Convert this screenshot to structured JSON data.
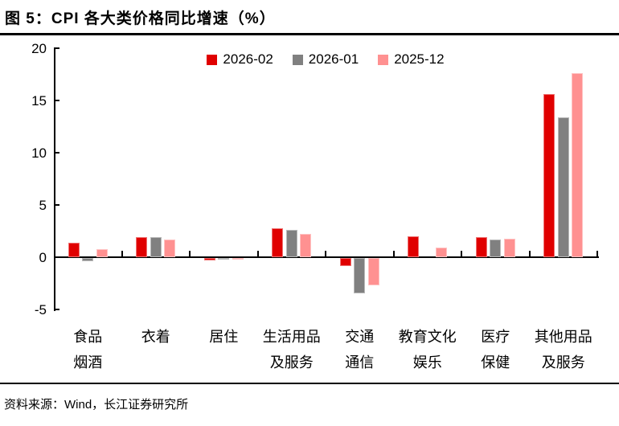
{
  "page": {
    "title": "图 5：CPI 各大类价格同比增速（%）",
    "source": "资料来源：Wind，长江证券研究所"
  },
  "chart_data": {
    "type": "bar",
    "title": "图 5：CPI 各大类价格同比增速（%）",
    "categories": [
      "食品烟酒",
      "衣着",
      "居住",
      "生活用品及服务",
      "交通通信",
      "教育文化娱乐",
      "医疗保健",
      "其他用品及服务"
    ],
    "category_label_lines": [
      [
        "食品",
        "烟酒"
      ],
      [
        "衣着"
      ],
      [
        "居住"
      ],
      [
        "生活用品",
        "及服务"
      ],
      [
        "交通",
        "通信"
      ],
      [
        "教育文化",
        "娱乐"
      ],
      [
        "医疗",
        "保健"
      ],
      [
        "其他用品",
        "及服务"
      ]
    ],
    "series": [
      {
        "name": "2026-02",
        "color": "#e00000",
        "values": [
          1.4,
          1.9,
          -0.2,
          2.8,
          -0.8,
          2.0,
          1.9,
          15.6
        ]
      },
      {
        "name": "2026-01",
        "color": "#808080",
        "values": [
          -0.3,
          1.9,
          -0.1,
          2.6,
          -3.4,
          0.0,
          1.7,
          13.4
        ]
      },
      {
        "name": "2025-12",
        "color": "#ff9191",
        "values": [
          0.8,
          1.7,
          -0.1,
          2.2,
          -2.6,
          0.9,
          1.8,
          17.6
        ]
      }
    ],
    "ylim": [
      -5,
      20
    ],
    "yticks": [
      -5,
      0,
      5,
      10,
      15,
      20
    ],
    "xlabel": "",
    "ylabel": "",
    "grid": false,
    "legend_position": "top-center"
  }
}
